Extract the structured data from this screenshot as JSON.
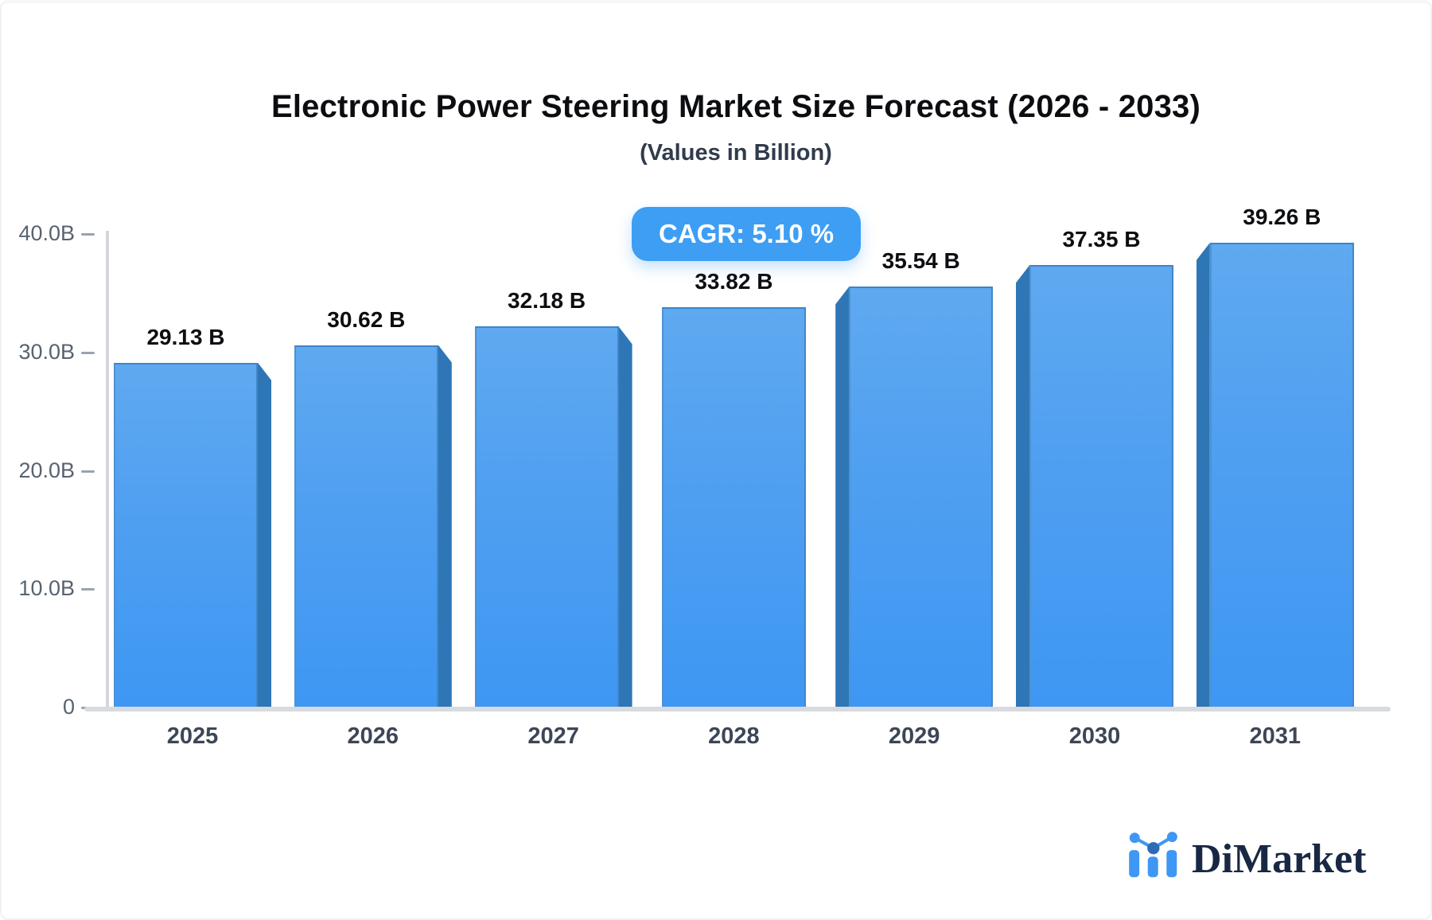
{
  "header": {
    "title": "Electronic Power Steering Market Size Forecast (2026 - 2033)",
    "subtitle": "(Values in Billion)"
  },
  "badge": {
    "label": "CAGR: 5.10 %"
  },
  "chart_data": {
    "type": "bar",
    "title": "Electronic Power Steering Market Size Forecast (2026 - 2033)",
    "subtitle": "(Values in Billion)",
    "cagr_percent": 5.1,
    "categories": [
      "2025",
      "2026",
      "2027",
      "2028",
      "2029",
      "2030",
      "2031"
    ],
    "values": [
      29.13,
      30.62,
      32.18,
      33.82,
      35.54,
      37.35,
      39.26
    ],
    "value_labels": [
      "29.13 B",
      "30.62 B",
      "32.18 B",
      "33.82 B",
      "35.54 B",
      "37.35 B",
      "39.26 B"
    ],
    "unit": "Billion",
    "ylim": [
      0,
      40
    ],
    "yticks": [
      {
        "value": 40,
        "label": "40.0B"
      },
      {
        "value": 30,
        "label": "30.0B"
      },
      {
        "value": 20,
        "label": "20.0B"
      },
      {
        "value": 10,
        "label": "10.0B"
      },
      {
        "value": 0,
        "label": "0"
      }
    ],
    "grid": false,
    "legend": "none",
    "colors": {
      "bar_top": "#5fa9f0",
      "bar_bottom": "#3e97f3",
      "bar_side": "#2e76b6",
      "axis": "#d3d7dc",
      "tick_text": "#586270",
      "value_text": "#0c0e11",
      "badge_bg": "#3d9ef4",
      "badge_text": "#ffffff"
    }
  },
  "logo": {
    "brand": "DiMarket",
    "icon": "bar-chart-logo-icon",
    "text_color": "#182844",
    "accent_color": "#3f97f4"
  }
}
